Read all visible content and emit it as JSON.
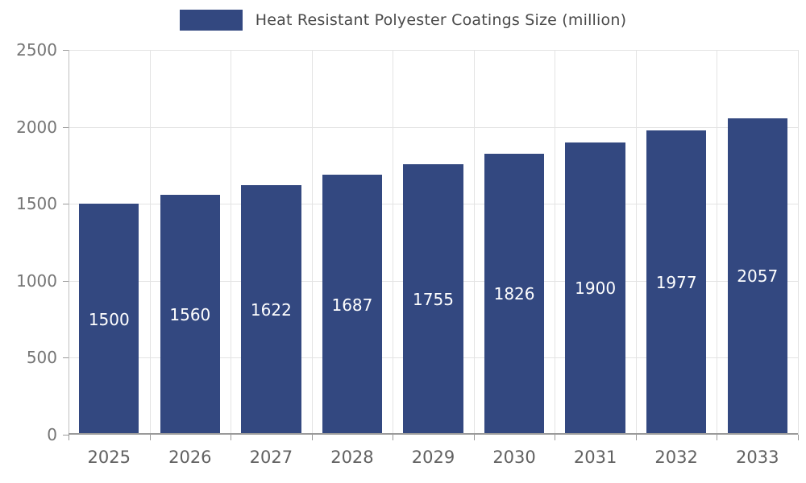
{
  "legend": {
    "label": "Heat Resistant Polyester Coatings Size (million)"
  },
  "colors": {
    "bar": "#334880",
    "grid": "#e3e3e3",
    "axis": "#9a9a9a",
    "tick_text": "#757575",
    "bar_label_text": "#ffffff"
  },
  "chart_data": {
    "type": "bar",
    "title": "Heat Resistant Polyester Coatings Size (million)",
    "categories": [
      "2025",
      "2026",
      "2027",
      "2028",
      "2029",
      "2030",
      "2031",
      "2032",
      "2033"
    ],
    "values": [
      1500,
      1560,
      1622,
      1687,
      1755,
      1826,
      1900,
      1977,
      2057
    ],
    "xlabel": "",
    "ylabel": "",
    "ylim": [
      0,
      2500
    ],
    "yticks": [
      0,
      500,
      1000,
      1500,
      2000,
      2500
    ],
    "grid": true,
    "legend_position": "top",
    "value_labels": "inside-center"
  }
}
